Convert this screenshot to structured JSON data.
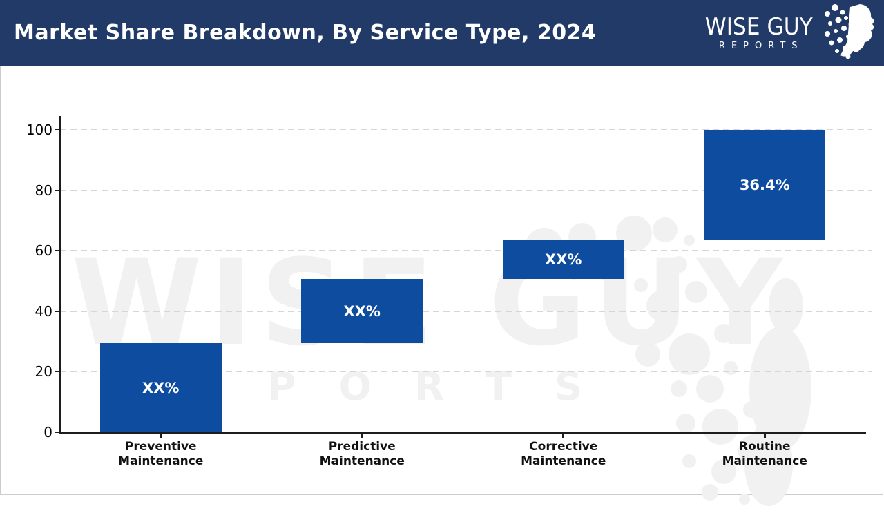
{
  "header": {
    "title": "Market Share Breakdown, By Service Type, 2024",
    "bg_color": "#213a67",
    "logo": {
      "line1": "WISE GUY",
      "line2": "REPORTS"
    }
  },
  "watermark": {
    "line1": "WISE GUY",
    "line2": "REPORTS"
  },
  "chart_data": {
    "type": "bar",
    "subtype": "waterfall",
    "title": "Market Share Breakdown, By Service Type, 2024",
    "categories": [
      "Preventive Maintenance",
      "Predictive Maintenance",
      "Corrective Maintenance",
      "Routine Maintenance"
    ],
    "segments": [
      {
        "category": "Preventive Maintenance",
        "start": 0,
        "end": 29.4,
        "value": 29.4,
        "label": "XX%"
      },
      {
        "category": "Predictive Maintenance",
        "start": 29.4,
        "end": 50.6,
        "value": 21.2,
        "label": "XX%"
      },
      {
        "category": "Corrective Maintenance",
        "start": 50.6,
        "end": 63.6,
        "value": 13.0,
        "label": "XX%"
      },
      {
        "category": "Routine Maintenance",
        "start": 63.6,
        "end": 100,
        "value": 36.4,
        "label": "36.4%"
      }
    ],
    "xlabel": "",
    "ylabel": "",
    "ylim": [
      0,
      100
    ],
    "yticks": [
      0,
      20,
      40,
      60,
      80,
      100
    ],
    "grid": "horizontal-dashed",
    "legend": "none",
    "bar_color": "#0d4c9f",
    "label_color": "#ffffff",
    "grid_color": "#d6d6d6",
    "watermark_color": "#f1f1f2"
  }
}
